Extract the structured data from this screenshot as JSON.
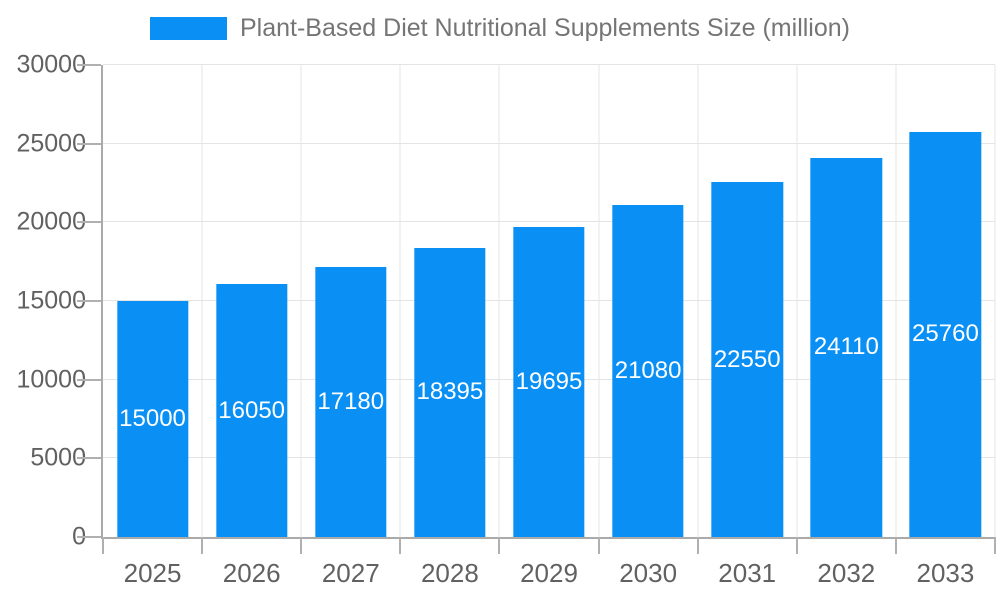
{
  "legend": {
    "label": "Plant-Based Diet Nutritional Supplements Size (million)"
  },
  "chart_data": {
    "type": "bar",
    "title": "Plant-Based Diet Nutritional Supplements Size (million)",
    "categories": [
      "2025",
      "2026",
      "2027",
      "2028",
      "2029",
      "2030",
      "2031",
      "2032",
      "2033"
    ],
    "values": [
      15000,
      16050,
      17180,
      18395,
      19695,
      21080,
      22550,
      24110,
      25760
    ],
    "xlabel": "",
    "ylabel": "",
    "ylim": [
      0,
      30000
    ],
    "y_ticks": [
      0,
      5000,
      10000,
      15000,
      20000,
      25000,
      30000
    ],
    "grid": true,
    "legend_position": "top-center",
    "value_labels_position": "inside-middle",
    "colors": {
      "bar": "#0a90f5",
      "value_label": "#ffffff",
      "axis_line": "#aaaaaa",
      "tick_mark": "#b0b0b0",
      "gridline": "#e4e4e4",
      "axis_text": "#616161",
      "title_text": "#757575",
      "background": "#ffffff"
    }
  }
}
